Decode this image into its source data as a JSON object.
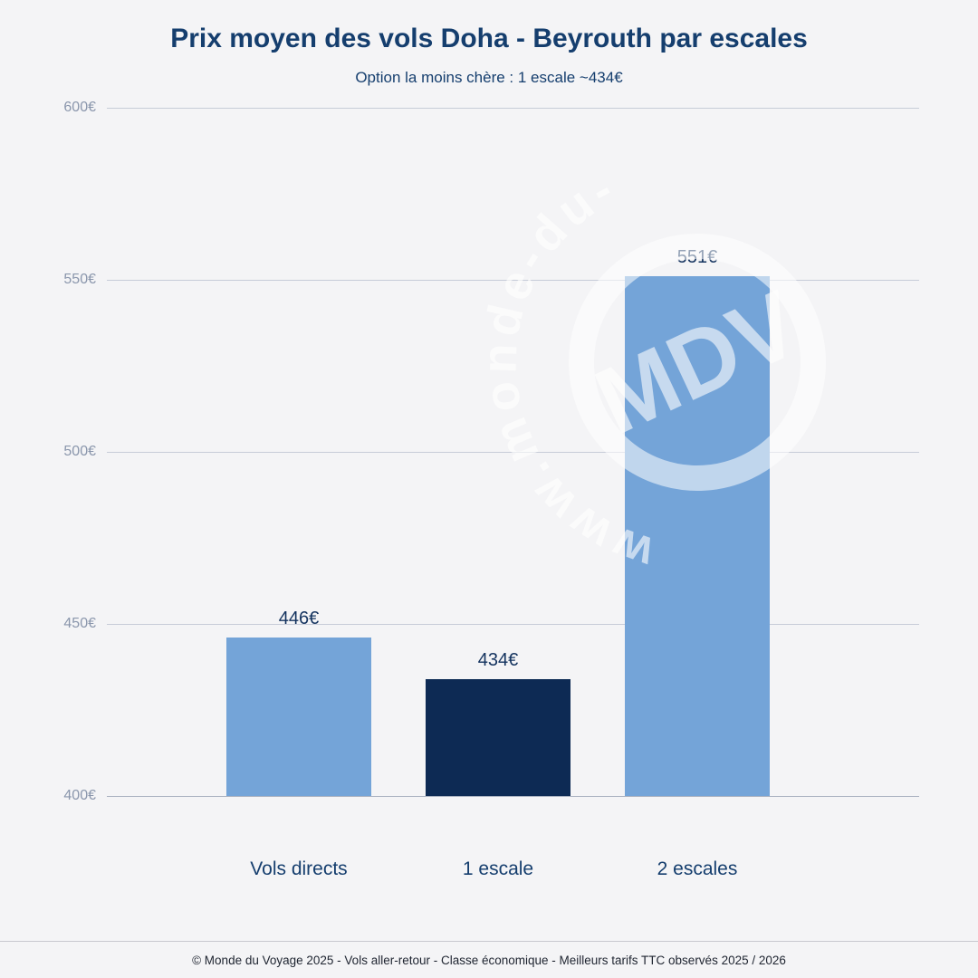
{
  "chart_data": {
    "type": "bar",
    "title": "Prix moyen des vols Doha - Beyrouth par escales",
    "subtitle": "Option la moins chère : 1 escale ~434€",
    "categories": [
      "Vols directs",
      "1 escale",
      "2 escales"
    ],
    "values": [
      446,
      434,
      551
    ],
    "value_labels": [
      "446€",
      "434€",
      "551€"
    ],
    "bar_colors": [
      "#74a4d8",
      "#0d2a54",
      "#74a4d8"
    ],
    "ylim": [
      400,
      600
    ],
    "ytick_values": [
      400,
      450,
      500,
      550,
      600
    ],
    "ytick_labels": [
      "400€",
      "450€",
      "500€",
      "550€",
      "600€"
    ],
    "grid": true,
    "legend": false,
    "xlabel": "",
    "ylabel": ""
  },
  "watermark": {
    "circle_text": "www.monde-du-voyage.com",
    "center_text": "MDV"
  },
  "footer": {
    "text": "© Monde du Voyage 2025 - Vols aller-retour - Classe économique - Meilleurs tarifs TTC observés 2025 / 2026"
  },
  "colors": {
    "background": "#f4f4f6",
    "title": "#153e6e",
    "light_blue_bar": "#74a4d8",
    "dark_navy_bar": "#0d2a54",
    "gridline": "#c7ccd8",
    "tick_label": "#8a96ac",
    "watermark": "#ffffff"
  }
}
